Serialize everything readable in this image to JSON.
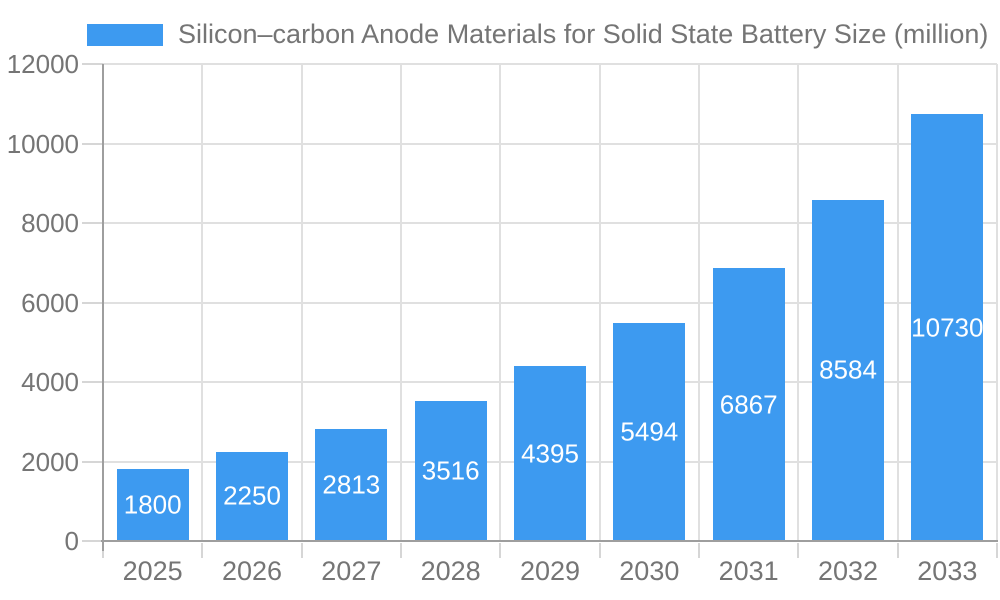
{
  "chart_data": {
    "type": "bar",
    "title": "Silicon–carbon Anode Materials for Solid State Battery Size (million)",
    "legend_entries": [
      "Silicon–carbon Anode Materials for Solid State Battery Size (million)"
    ],
    "legend_position": "top-center",
    "categories": [
      "2025",
      "2026",
      "2027",
      "2028",
      "2029",
      "2030",
      "2031",
      "2032",
      "2033"
    ],
    "values": [
      1800,
      2250,
      2813,
      3516,
      4395,
      5494,
      6867,
      8584,
      10730
    ],
    "bar_value_labels": [
      "1800",
      "2250",
      "2813",
      "3516",
      "4395",
      "5494",
      "6867",
      "8584",
      "10730"
    ],
    "xlabel": "",
    "ylabel": "",
    "ylim": [
      0,
      12000
    ],
    "yticks": [
      0,
      2000,
      4000,
      6000,
      8000,
      10000,
      12000
    ],
    "grid": true,
    "colors": {
      "bar": "#3d9af0",
      "bar_label": "#ffffff",
      "text": "#757575",
      "grid": "#e0e0e0",
      "tick": "#d6d6d6",
      "axis": "#9e9e9e",
      "background": "#ffffff"
    }
  }
}
